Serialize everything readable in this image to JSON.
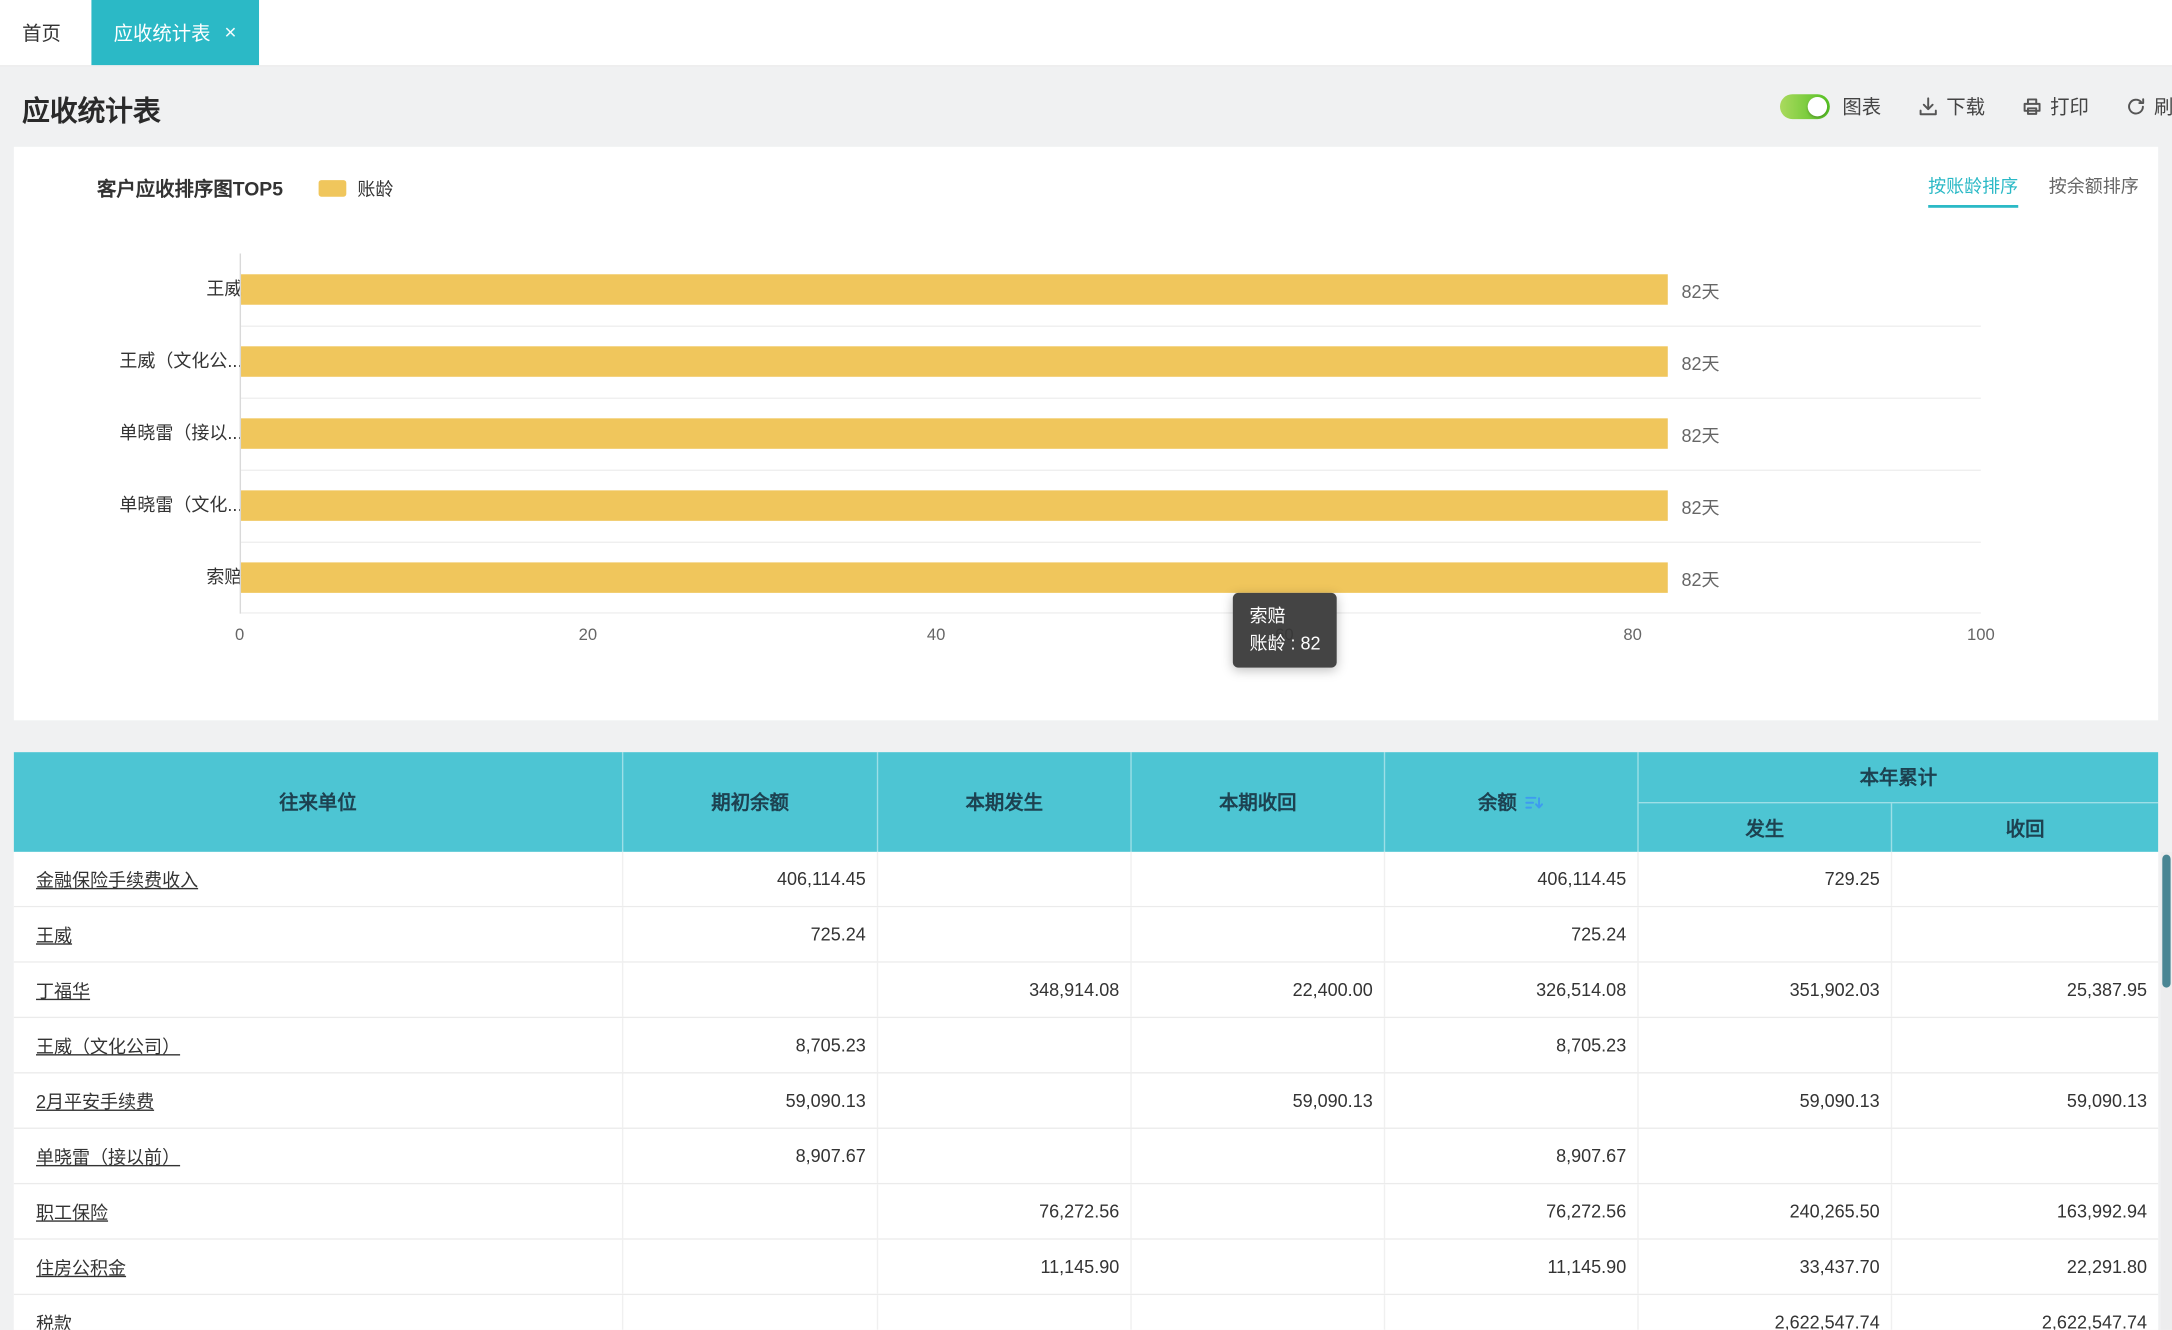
{
  "colors": {
    "accent_teal": "#2BB9C6",
    "table_header_teal": "#4DC5D3",
    "bar_yellow": "#F0C65C",
    "toggle_green": "#55C124"
  },
  "topbar": {
    "home_tab": "首页",
    "active_tab": "应收统计表",
    "close_icon": "×"
  },
  "header": {
    "title": "应收统计表",
    "chart_toggle_label": "图表",
    "download_label": "下载",
    "print_label": "打印",
    "refresh_label": "刷新"
  },
  "chart": {
    "title": "客户应收排序图TOP5",
    "legend_label": "账龄",
    "sort_tabs": {
      "by_age": "按账龄排序",
      "by_balance": "按余额排序"
    },
    "tooltip": {
      "title": "索赔",
      "text": "账龄 : 82"
    }
  },
  "chart_data": {
    "type": "bar",
    "orientation": "horizontal",
    "title": "客户应收排序图TOP5",
    "legend": [
      "账龄"
    ],
    "legend_position": "top",
    "grid": true,
    "categories": [
      "王威",
      "王威（文化公...",
      "单晓雷（接以...",
      "单晓雷（文化...",
      "索赔"
    ],
    "series": [
      {
        "name": "账龄",
        "values": [
          82,
          82,
          82,
          82,
          82
        ]
      }
    ],
    "value_labels": [
      "82天",
      "82天",
      "82天",
      "82天",
      "82天"
    ],
    "unit": "天",
    "xlim": [
      0,
      100
    ],
    "xticks": [
      "0",
      "20",
      "40",
      "60",
      "80",
      "100"
    ],
    "bar_color": "#F0C65C"
  },
  "table": {
    "headers": {
      "unit": "往来单位",
      "opening_balance": "期初余额",
      "current_incurred": "本期发生",
      "current_received": "本期收回",
      "balance": "余额",
      "ytd": "本年累计",
      "ytd_incurred": "发生",
      "ytd_received": "收回"
    },
    "rows": [
      {
        "name": "金融保险手续费收入",
        "opening": "406,114.45",
        "incurred": "",
        "received": "",
        "balance": "406,114.45",
        "ytd_incurred": "729.25",
        "ytd_received": ""
      },
      {
        "name": "王威",
        "opening": "725.24",
        "incurred": "",
        "received": "",
        "balance": "725.24",
        "ytd_incurred": "",
        "ytd_received": ""
      },
      {
        "name": "丁福华",
        "opening": "",
        "incurred": "348,914.08",
        "received": "22,400.00",
        "balance": "326,514.08",
        "ytd_incurred": "351,902.03",
        "ytd_received": "25,387.95"
      },
      {
        "name": "王威（文化公司）",
        "opening": "8,705.23",
        "incurred": "",
        "received": "",
        "balance": "8,705.23",
        "ytd_incurred": "",
        "ytd_received": ""
      },
      {
        "name": "2月平安手续费",
        "opening": "59,090.13",
        "incurred": "",
        "received": "59,090.13",
        "balance": "",
        "ytd_incurred": "59,090.13",
        "ytd_received": "59,090.13"
      },
      {
        "name": "单晓雷（接以前）",
        "opening": "8,907.67",
        "incurred": "",
        "received": "",
        "balance": "8,907.67",
        "ytd_incurred": "",
        "ytd_received": ""
      },
      {
        "name": "职工保险",
        "opening": "",
        "incurred": "76,272.56",
        "received": "",
        "balance": "76,272.56",
        "ytd_incurred": "240,265.50",
        "ytd_received": "163,992.94"
      },
      {
        "name": "住房公积金",
        "opening": "",
        "incurred": "11,145.90",
        "received": "",
        "balance": "11,145.90",
        "ytd_incurred": "33,437.70",
        "ytd_received": "22,291.80"
      },
      {
        "name": "税款",
        "opening": "",
        "incurred": "",
        "received": "",
        "balance": "",
        "ytd_incurred": "2,622,547.74",
        "ytd_received": "2,622,547.74"
      }
    ]
  }
}
